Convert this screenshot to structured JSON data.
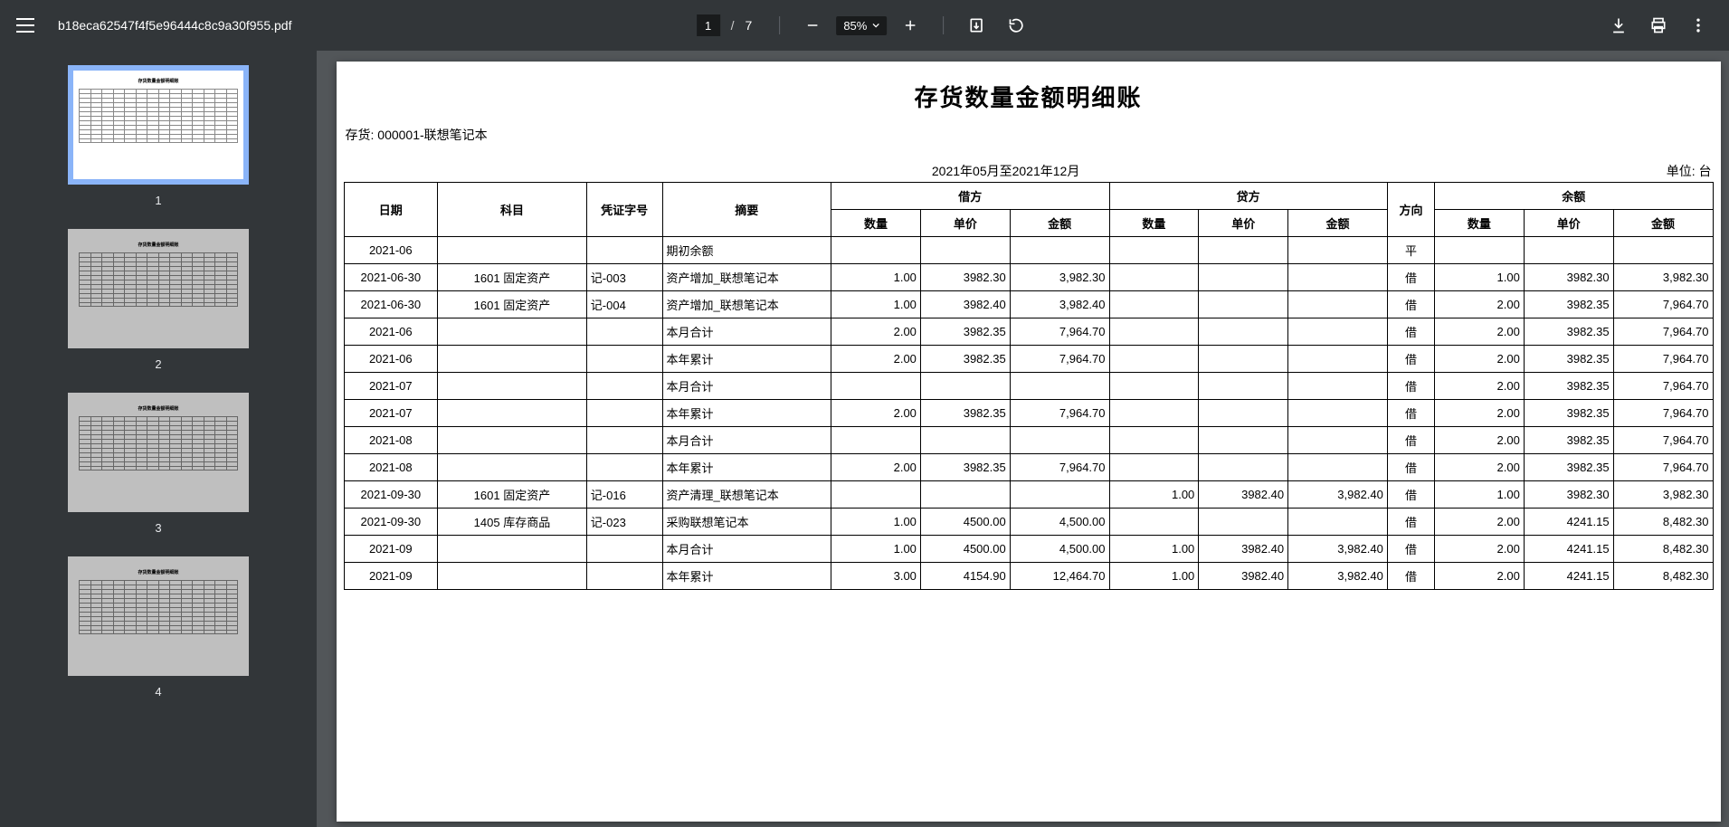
{
  "toolbar": {
    "filename": "b18eca62547f4f5e96444c8c9a30f955.pdf",
    "page_current": "1",
    "page_sep": "/",
    "page_total": "7",
    "zoom": "85%"
  },
  "sidebar": {
    "thumbs": [
      {
        "num": "1",
        "selected": true
      },
      {
        "num": "2",
        "selected": false
      },
      {
        "num": "3",
        "selected": false
      },
      {
        "num": "4",
        "selected": false
      }
    ]
  },
  "document": {
    "title": "存货数量金额明细账",
    "inventory_label": "存货:",
    "inventory_value": "000001-联想笔记本",
    "period": "2021年05月至2021年12月",
    "unit_label": "单位:",
    "unit_value": "台",
    "headers": {
      "date": "日期",
      "subject": "科目",
      "voucher": "凭证字号",
      "desc": "摘要",
      "debit": "借方",
      "credit": "贷方",
      "direction": "方向",
      "balance": "余额",
      "qty": "数量",
      "price": "单价",
      "amount": "金额"
    },
    "rows": [
      {
        "date": "2021-06",
        "subject": "",
        "voucher": "",
        "desc": "期初余额",
        "dq": "",
        "dp": "",
        "da": "",
        "cq": "",
        "cp": "",
        "ca": "",
        "dir": "平",
        "bq": "",
        "bp": "",
        "ba": ""
      },
      {
        "date": "2021-06-30",
        "subject": "1601 固定资产",
        "voucher": "记-003",
        "desc": "资产增加_联想笔记本",
        "dq": "1.00",
        "dp": "3982.30",
        "da": "3,982.30",
        "cq": "",
        "cp": "",
        "ca": "",
        "dir": "借",
        "bq": "1.00",
        "bp": "3982.30",
        "ba": "3,982.30"
      },
      {
        "date": "2021-06-30",
        "subject": "1601 固定资产",
        "voucher": "记-004",
        "desc": "资产增加_联想笔记本",
        "dq": "1.00",
        "dp": "3982.40",
        "da": "3,982.40",
        "cq": "",
        "cp": "",
        "ca": "",
        "dir": "借",
        "bq": "2.00",
        "bp": "3982.35",
        "ba": "7,964.70"
      },
      {
        "date": "2021-06",
        "subject": "",
        "voucher": "",
        "desc": "本月合计",
        "dq": "2.00",
        "dp": "3982.35",
        "da": "7,964.70",
        "cq": "",
        "cp": "",
        "ca": "",
        "dir": "借",
        "bq": "2.00",
        "bp": "3982.35",
        "ba": "7,964.70"
      },
      {
        "date": "2021-06",
        "subject": "",
        "voucher": "",
        "desc": "本年累计",
        "dq": "2.00",
        "dp": "3982.35",
        "da": "7,964.70",
        "cq": "",
        "cp": "",
        "ca": "",
        "dir": "借",
        "bq": "2.00",
        "bp": "3982.35",
        "ba": "7,964.70"
      },
      {
        "date": "2021-07",
        "subject": "",
        "voucher": "",
        "desc": "本月合计",
        "dq": "",
        "dp": "",
        "da": "",
        "cq": "",
        "cp": "",
        "ca": "",
        "dir": "借",
        "bq": "2.00",
        "bp": "3982.35",
        "ba": "7,964.70"
      },
      {
        "date": "2021-07",
        "subject": "",
        "voucher": "",
        "desc": "本年累计",
        "dq": "2.00",
        "dp": "3982.35",
        "da": "7,964.70",
        "cq": "",
        "cp": "",
        "ca": "",
        "dir": "借",
        "bq": "2.00",
        "bp": "3982.35",
        "ba": "7,964.70"
      },
      {
        "date": "2021-08",
        "subject": "",
        "voucher": "",
        "desc": "本月合计",
        "dq": "",
        "dp": "",
        "da": "",
        "cq": "",
        "cp": "",
        "ca": "",
        "dir": "借",
        "bq": "2.00",
        "bp": "3982.35",
        "ba": "7,964.70"
      },
      {
        "date": "2021-08",
        "subject": "",
        "voucher": "",
        "desc": "本年累计",
        "dq": "2.00",
        "dp": "3982.35",
        "da": "7,964.70",
        "cq": "",
        "cp": "",
        "ca": "",
        "dir": "借",
        "bq": "2.00",
        "bp": "3982.35",
        "ba": "7,964.70"
      },
      {
        "date": "2021-09-30",
        "subject": "1601 固定资产",
        "voucher": "记-016",
        "desc": "资产清理_联想笔记本",
        "dq": "",
        "dp": "",
        "da": "",
        "cq": "1.00",
        "cp": "3982.40",
        "ca": "3,982.40",
        "dir": "借",
        "bq": "1.00",
        "bp": "3982.30",
        "ba": "3,982.30"
      },
      {
        "date": "2021-09-30",
        "subject": "1405 库存商品",
        "voucher": "记-023",
        "desc": "采购联想笔记本",
        "dq": "1.00",
        "dp": "4500.00",
        "da": "4,500.00",
        "cq": "",
        "cp": "",
        "ca": "",
        "dir": "借",
        "bq": "2.00",
        "bp": "4241.15",
        "ba": "8,482.30"
      },
      {
        "date": "2021-09",
        "subject": "",
        "voucher": "",
        "desc": "本月合计",
        "dq": "1.00",
        "dp": "4500.00",
        "da": "4,500.00",
        "cq": "1.00",
        "cp": "3982.40",
        "ca": "3,982.40",
        "dir": "借",
        "bq": "2.00",
        "bp": "4241.15",
        "ba": "8,482.30"
      },
      {
        "date": "2021-09",
        "subject": "",
        "voucher": "",
        "desc": "本年累计",
        "dq": "3.00",
        "dp": "4154.90",
        "da": "12,464.70",
        "cq": "1.00",
        "cp": "3982.40",
        "ca": "3,982.40",
        "dir": "借",
        "bq": "2.00",
        "bp": "4241.15",
        "ba": "8,482.30"
      }
    ]
  },
  "style": {
    "colors": {
      "toolbar_bg": "#323639",
      "viewer_bg": "#525659",
      "page_bg": "#ffffff",
      "selected_border": "#8ab4f8",
      "text": "#000000",
      "toolbar_text": "#ffffff",
      "input_bg": "#191b1c",
      "table_border": "#000000"
    },
    "title_fontsize": 26,
    "body_fontsize": 13,
    "meta_fontsize": 14
  }
}
